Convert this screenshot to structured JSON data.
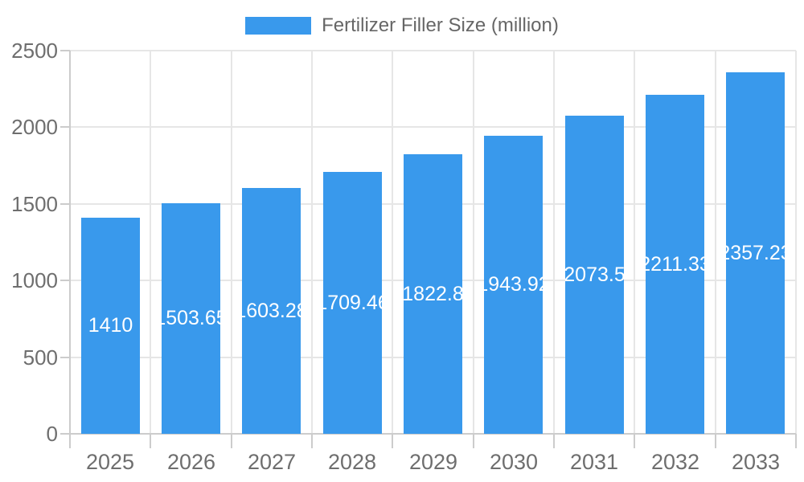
{
  "chart_data": {
    "type": "bar",
    "title": "Fertilizer Filler Size (million)",
    "categories": [
      "2025",
      "2026",
      "2027",
      "2028",
      "2029",
      "2030",
      "2031",
      "2032",
      "2033"
    ],
    "values": [
      1410,
      1503.65,
      1603.28,
      1709.46,
      1822.8,
      1943.92,
      2073.5,
      2211.33,
      2357.23
    ],
    "value_labels": [
      "1410",
      "1503.65",
      "1603.28",
      "1709.46",
      "1822.8",
      "1943.92",
      "2073.5",
      "2211.33",
      "2357.23"
    ],
    "xlabel": "",
    "ylabel": "",
    "ylim": [
      0,
      2500
    ],
    "yticks": [
      0,
      500,
      1000,
      1500,
      2000,
      2500
    ],
    "ytick_labels": [
      "0",
      "500",
      "1000",
      "1500",
      "2000",
      "2500"
    ],
    "grid": "on",
    "legend_position": "top-center",
    "colors": {
      "bar": "#3999ec",
      "grid_line": "#e6e6e6",
      "axis_line": "#cccccc",
      "axis_text": "#6e6e6e",
      "legend_text": "#666666",
      "bar_label_text": "#ffffff",
      "background": "#ffffff"
    }
  }
}
